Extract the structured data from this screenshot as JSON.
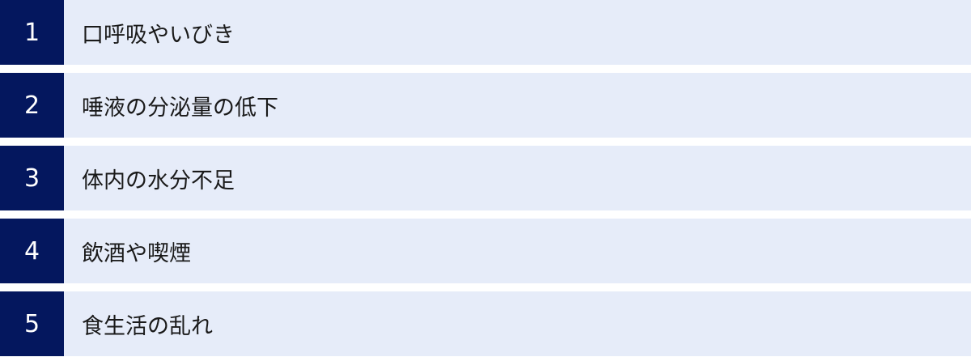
{
  "items": [
    {
      "number": "1",
      "label": "口呼吸やいびき"
    },
    {
      "number": "2",
      "label": "唾液の分泌量の低下"
    },
    {
      "number": "3",
      "label": "体内の水分不足"
    },
    {
      "number": "4",
      "label": "飲酒や喫煙"
    },
    {
      "number": "5",
      "label": "食生活の乱れ"
    }
  ],
  "colors": {
    "number_bg": "#04175e",
    "label_bg": "#e6ecf9"
  }
}
